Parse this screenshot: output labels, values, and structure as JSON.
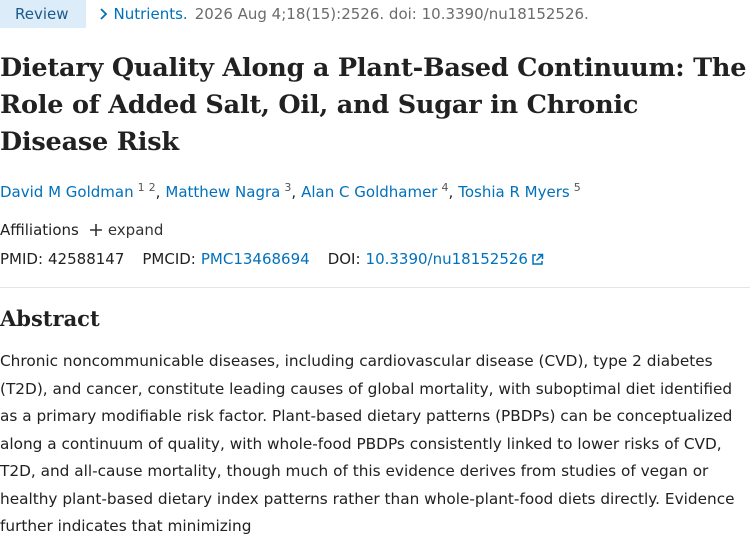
{
  "header": {
    "badge": "Review",
    "journal": "Nutrients.",
    "citation": "2026 Aug 4;18(15):2526. doi: 10.3390/nu18152526."
  },
  "title": "Dietary Quality Along a Plant-Based Continuum: The Role of Added Salt, Oil, and Sugar in Chronic Disease Risk",
  "author_separator": ",",
  "authors": [
    {
      "name": "David M Goldman",
      "affiliations": [
        "1",
        "2"
      ]
    },
    {
      "name": "Matthew Nagra",
      "affiliations": [
        "3"
      ]
    },
    {
      "name": "Alan C Goldhamer",
      "affiliations": [
        "4"
      ]
    },
    {
      "name": "Toshia R Myers",
      "affiliations": [
        "5"
      ]
    }
  ],
  "affiliations": {
    "label": "Affiliations",
    "toggle": "expand"
  },
  "identifiers": {
    "pmid_label": "PMID:",
    "pmid": "42588147",
    "pmcid_label": "PMCID:",
    "pmcid": "PMC13468694",
    "doi_label": "DOI:",
    "doi": "10.3390/nu18152526"
  },
  "abstract": {
    "heading": "Abstract",
    "text": "Chronic noncommunicable diseases, including cardiovascular disease (CVD), type 2 diabetes (T2D), and cancer, constitute leading causes of global mortality, with suboptimal diet identified as a primary modifiable risk factor. Plant-based dietary patterns (PBDPs) can be conceptualized along a continuum of quality, with whole-food PBDPs consistently linked to lower risks of CVD, T2D, and all-cause mortality, though much of this evidence derives from studies of vegan or healthy plant-based dietary index patterns rather than whole-plant-food diets directly. Evidence further indicates that minimizing"
  }
}
